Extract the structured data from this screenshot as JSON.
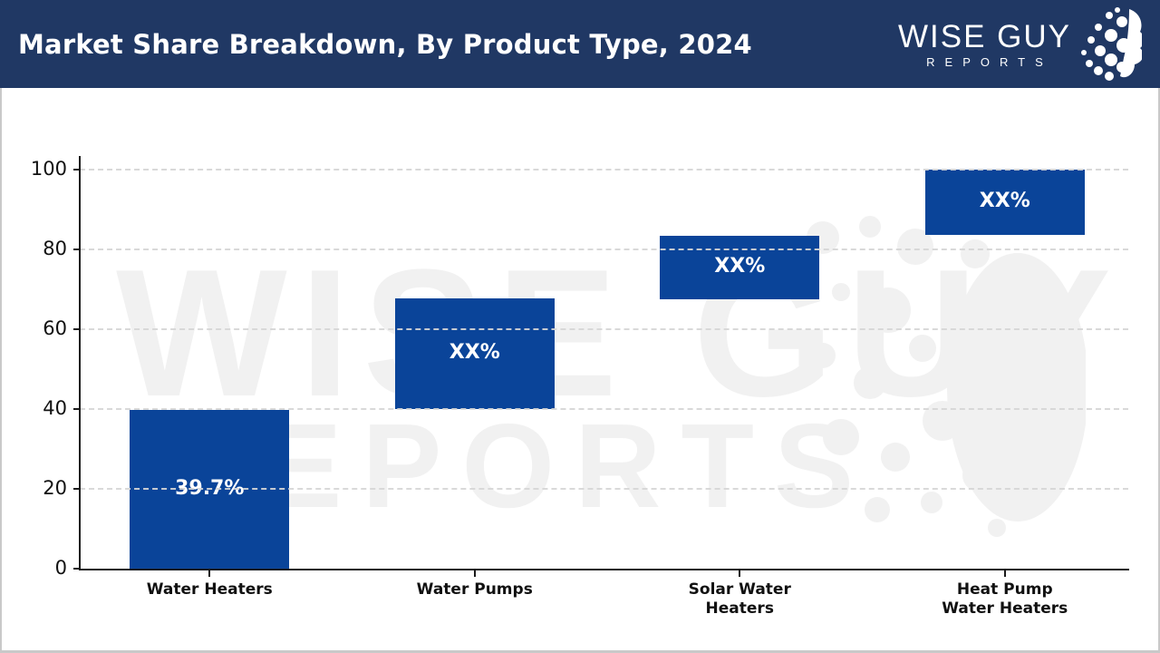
{
  "header": {
    "title": "Market Share Breakdown, By Product Type, 2024",
    "logo_line1": "WISE GUY",
    "logo_line2": "REPORTS"
  },
  "watermark": {
    "line1": "WISE GUY",
    "line2": "REPORTS"
  },
  "colors": {
    "header_bg": "#203864",
    "bar_fill": "#0a4499",
    "bar_label": "#ffffff",
    "axis": "#1a1a1a",
    "gridline": "#d6d6d6",
    "tick_label": "#111111",
    "watermark": "#f1f1f1",
    "page_border": "#c9c9c9"
  },
  "chart_data": {
    "type": "bar",
    "subtype": "waterfall",
    "title": "Market Share Breakdown, By Product Type, 2024",
    "categories": [
      "Water Heaters",
      "Water Pumps",
      "Solar Water Heaters",
      "Heat Pump Water Heaters"
    ],
    "series": [
      {
        "name": "Market Share (%)",
        "segments": [
          {
            "category": "Water Heaters",
            "start": 0,
            "end": 39.7,
            "value": 39.7,
            "label": "39.7%"
          },
          {
            "category": "Water Pumps",
            "start": 40,
            "end": 67.7,
            "value": 27.7,
            "label": "XX%"
          },
          {
            "category": "Solar Water Heaters",
            "start": 67.5,
            "end": 83.4,
            "value": 15.9,
            "label": "XX%"
          },
          {
            "category": "Heat Pump Water Heaters",
            "start": 83.6,
            "end": 100,
            "value": 16.4,
            "label": "XX%"
          }
        ]
      }
    ],
    "xlabel": "",
    "ylabel": "",
    "ylim": [
      0,
      100
    ],
    "y_ticks": [
      0,
      20,
      40,
      60,
      80,
      100
    ],
    "grid": "horizontal-dashed",
    "legend": "none"
  }
}
